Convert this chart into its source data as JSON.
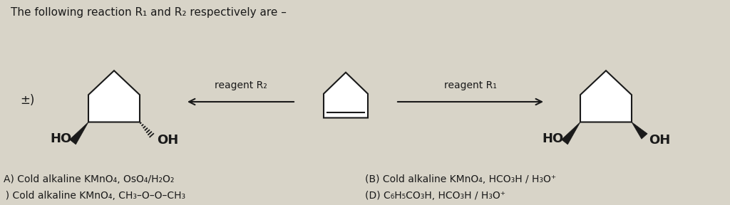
{
  "title": "The following reaction R₁ and R₂ respectively are –",
  "bg_color": "#d8d4c8",
  "text_color": "#1a1a1a",
  "option_A": "A) Cold alkaline KMnO₄, OsO₄/H₂O₂",
  "option_C": " ) Cold alkaline KMnO₄, CH₃–O–O–CH₃",
  "option_B": "(B) Cold alkaline KMnO₄, HCO₃H / H₃O⁺",
  "option_D": "(D) C₆H₅CO₃H, HCO₃H / H₃O⁺",
  "reagent_R2": "reagent R₂",
  "reagent_R1": "reagent R₁",
  "label_pm": "±)",
  "label_HO_left": "HO",
  "label_OH_left": "OH",
  "label_HO_right": "HO",
  "label_OH_right": "OH"
}
